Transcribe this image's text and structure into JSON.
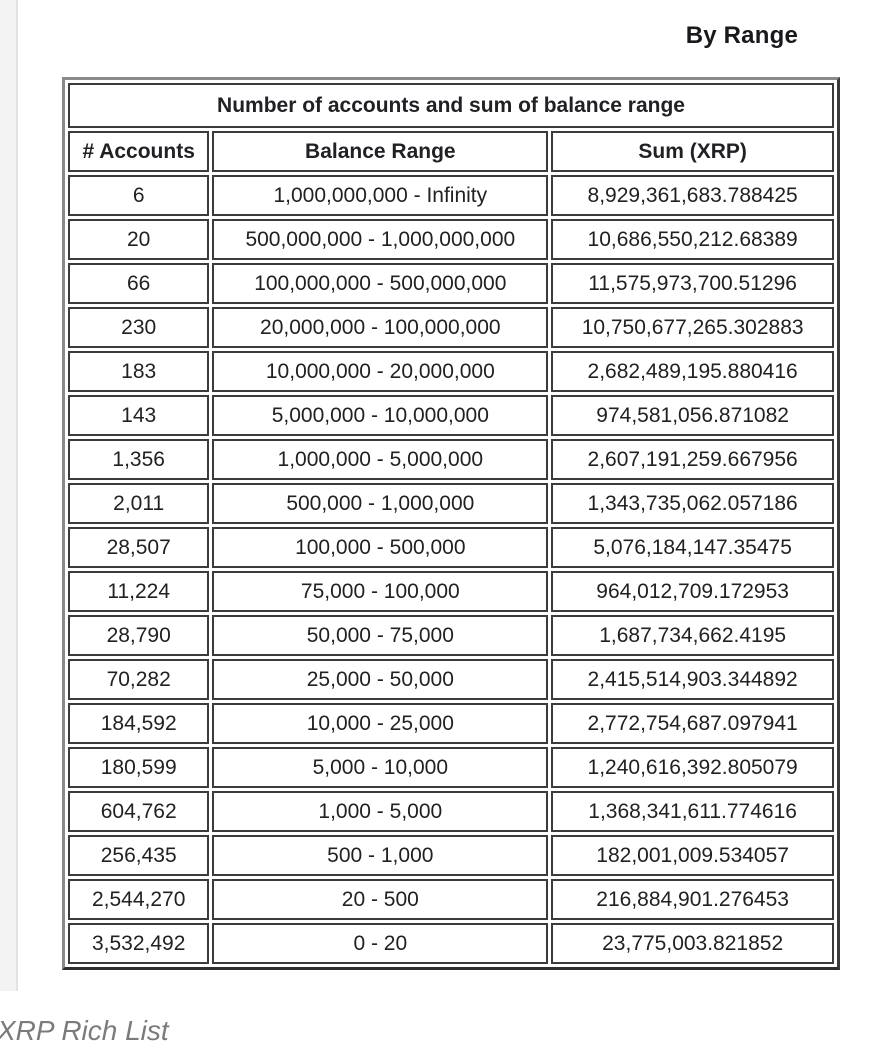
{
  "page": {
    "section_label": "By Range",
    "caption": "XRP Rich List"
  },
  "table": {
    "title": "Number of accounts and sum of balance range",
    "columns": [
      "# Accounts",
      "Balance Range",
      "Sum (XRP)"
    ],
    "rows": [
      [
        "6",
        "1,000,000,000 - Infinity",
        "8,929,361,683.788425"
      ],
      [
        "20",
        "500,000,000 - 1,000,000,000",
        "10,686,550,212.68389"
      ],
      [
        "66",
        "100,000,000 - 500,000,000",
        "11,575,973,700.51296"
      ],
      [
        "230",
        "20,000,000 - 100,000,000",
        "10,750,677,265.302883"
      ],
      [
        "183",
        "10,000,000 - 20,000,000",
        "2,682,489,195.880416"
      ],
      [
        "143",
        "5,000,000 - 10,000,000",
        "974,581,056.871082"
      ],
      [
        "1,356",
        "1,000,000 - 5,000,000",
        "2,607,191,259.667956"
      ],
      [
        "2,011",
        "500,000 - 1,000,000",
        "1,343,735,062.057186"
      ],
      [
        "28,507",
        "100,000 - 500,000",
        "5,076,184,147.35475"
      ],
      [
        "11,224",
        "75,000 - 100,000",
        "964,012,709.172953"
      ],
      [
        "28,790",
        "50,000 - 75,000",
        "1,687,734,662.4195"
      ],
      [
        "70,282",
        "25,000 - 50,000",
        "2,415,514,903.344892"
      ],
      [
        "184,592",
        "10,000 - 25,000",
        "2,772,754,687.097941"
      ],
      [
        "180,599",
        "5,000 - 10,000",
        "1,240,616,392.805079"
      ],
      [
        "604,762",
        "1,000 - 5,000",
        "1,368,341,611.774616"
      ],
      [
        "256,435",
        "500 - 1,000",
        "182,001,009.534057"
      ],
      [
        "2,544,270",
        "20 - 500",
        "216,884,901.276453"
      ],
      [
        "3,532,492",
        "0 - 20",
        "23,775,003.821852"
      ]
    ]
  },
  "colors": {
    "text": "#202124",
    "caption_text": "#7b7b7b",
    "cell_border": "#3b3b3b",
    "table_border_light": "#8a8a8a",
    "table_border_dark": "#2e2e2e",
    "gutter_bg": "#f3f3f3",
    "gutter_edge": "#e2e2e2"
  }
}
